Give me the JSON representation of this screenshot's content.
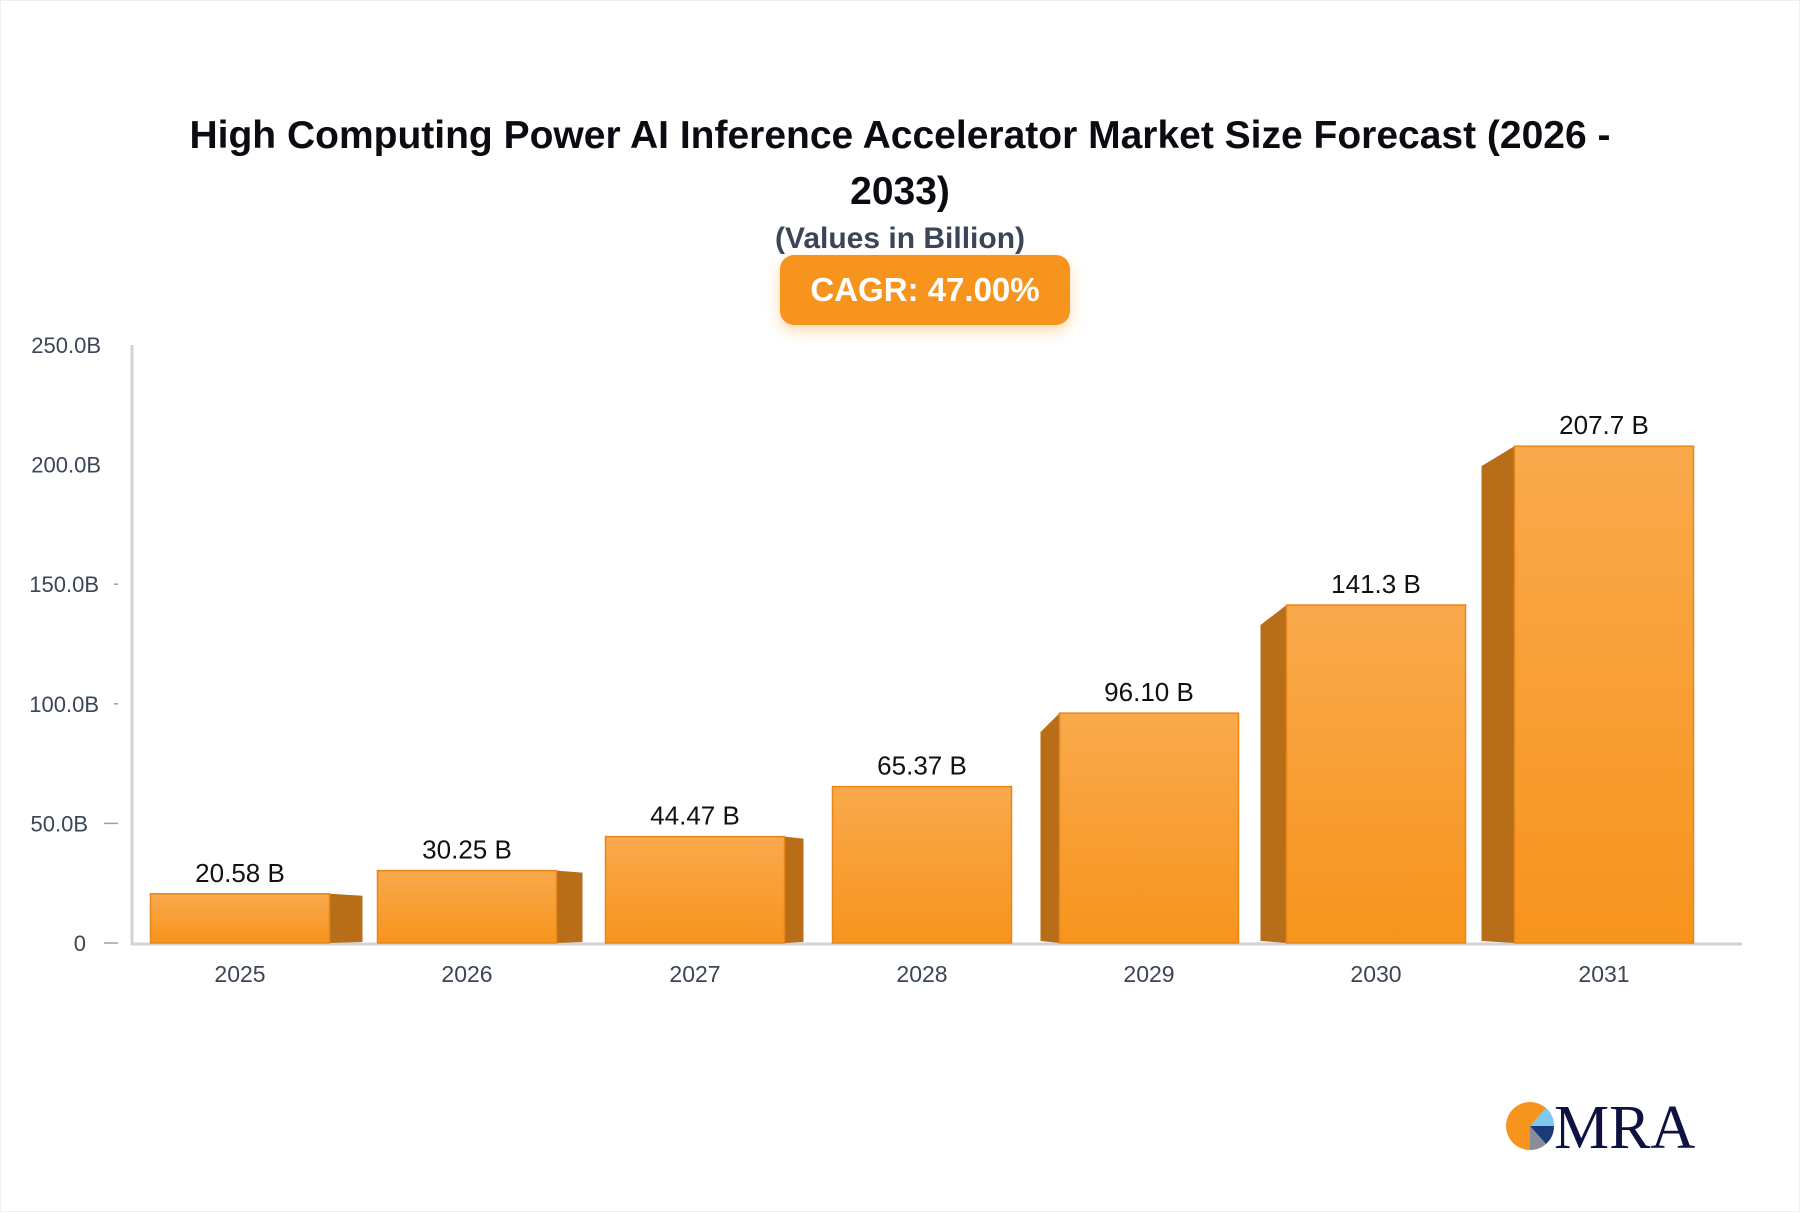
{
  "chart_data": {
    "type": "bar",
    "title": "High Computing Power AI Inference Accelerator Market Size Forecast (2026 - 2033)",
    "subtitle": "(Values in Billion)",
    "badge": "CAGR: 47.00%",
    "categories": [
      "2025",
      "2026",
      "2027",
      "2028",
      "2029",
      "2030",
      "2031"
    ],
    "values": [
      20.58,
      30.25,
      44.47,
      65.37,
      96.1,
      141.3,
      207.7
    ],
    "data_labels": [
      "20.58 B",
      "30.25 B",
      "44.47 B",
      "65.37 B",
      "96.10 B",
      "141.3 B",
      "207.7 B"
    ],
    "yticks": [
      0,
      50,
      100,
      150,
      200,
      250
    ],
    "ytick_labels": [
      "0",
      "50.0B",
      "100.0B",
      "150.0B",
      "200.0B",
      "250.0B"
    ],
    "ylim": [
      0,
      250
    ],
    "grid": false,
    "legend": "none",
    "colors": {
      "bar": "#f7941d",
      "bar_top": "#f9a94c",
      "bar_side": "#b86d18",
      "axis": "#d0d3da",
      "badge": "#f7941d"
    }
  },
  "logo": {
    "text": "MRA"
  }
}
